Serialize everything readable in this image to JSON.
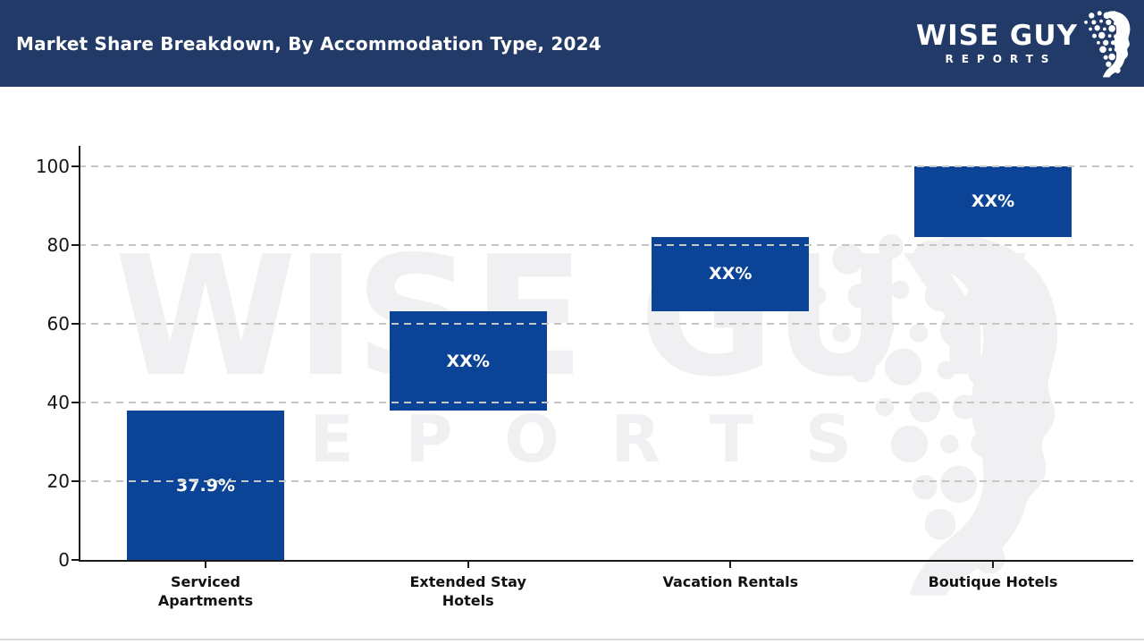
{
  "header": {
    "title": "Market Share Breakdown, By Accommodation Type, 2024",
    "logo": {
      "name": "WISE GUY",
      "tagline": "REPORTS"
    }
  },
  "watermark": {
    "line1": "WISE GUY",
    "line2": "REPORTS"
  },
  "colors": {
    "header_bg": "#223A67",
    "bar_blue": "#0B4396",
    "gridline": "#C6C6C6",
    "axis": "#1A1A1A",
    "watermark_gray": "#F0F0F2",
    "bar_label_white": "#FFFFFF",
    "footer_line": "#D9D9D9"
  },
  "chart_data": {
    "type": "bar",
    "subtype": "waterfall",
    "title": "Market Share Breakdown, By Accommodation Type, 2024",
    "categories": [
      [
        "Serviced",
        "Apartments"
      ],
      [
        "Extended Stay",
        "Hotels"
      ],
      [
        "Vacation Rentals"
      ],
      [
        "Boutique Hotels"
      ]
    ],
    "series": [
      {
        "name": "Market share",
        "segments": [
          {
            "start": 0,
            "end": 37.9,
            "label": "37.9%"
          },
          {
            "start": 37.9,
            "end": 63.2,
            "label": "XX%"
          },
          {
            "start": 63.2,
            "end": 82.1,
            "label": "XX%"
          },
          {
            "start": 82.1,
            "end": 100,
            "label": "XX%"
          }
        ]
      }
    ],
    "ylim": [
      0,
      105
    ],
    "yticks": [
      0,
      20,
      40,
      60,
      80,
      100
    ],
    "grid": "horizontal-dashed",
    "legend": "none",
    "xlabel": "",
    "ylabel": ""
  }
}
